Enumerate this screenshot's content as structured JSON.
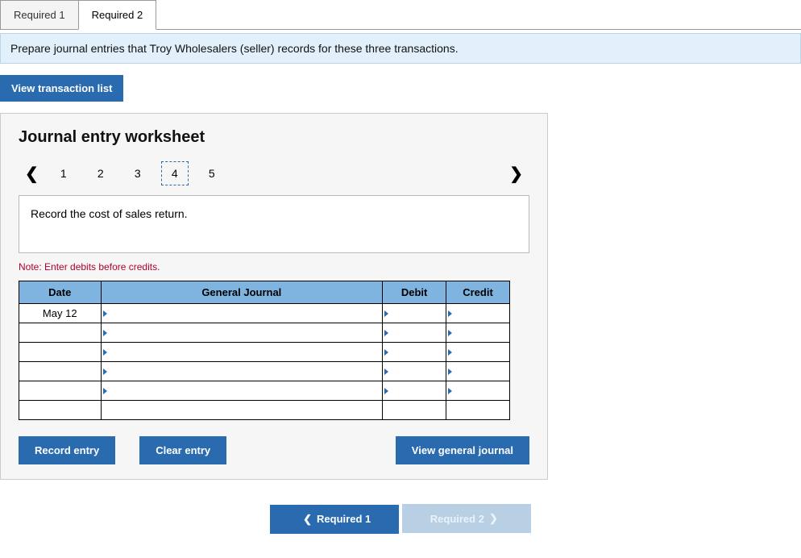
{
  "tabs": {
    "items": [
      {
        "label": "Required 1",
        "active": false
      },
      {
        "label": "Required 2",
        "active": true
      }
    ]
  },
  "instruction": "Prepare journal entries that Troy Wholesalers (seller) records for these three transactions.",
  "view_transaction_label": "View transaction list",
  "worksheet": {
    "title": "Journal entry worksheet",
    "pages": [
      "1",
      "2",
      "3",
      "4",
      "5"
    ],
    "active_page": "4",
    "prompt": "Record the cost of sales return.",
    "note": "Note: Enter debits before credits.",
    "columns": {
      "date": "Date",
      "journal": "General Journal",
      "debit": "Debit",
      "credit": "Credit"
    },
    "rows": [
      {
        "date": "May 12",
        "journal": "",
        "debit": "",
        "credit": ""
      },
      {
        "date": "",
        "journal": "",
        "debit": "",
        "credit": ""
      },
      {
        "date": "",
        "journal": "",
        "debit": "",
        "credit": ""
      },
      {
        "date": "",
        "journal": "",
        "debit": "",
        "credit": ""
      },
      {
        "date": "",
        "journal": "",
        "debit": "",
        "credit": ""
      },
      {
        "date": "",
        "journal": "",
        "debit": "",
        "credit": ""
      }
    ],
    "buttons": {
      "record": "Record entry",
      "clear": "Clear entry",
      "view_journal": "View general journal"
    }
  },
  "nav": {
    "prev": "Required 1",
    "next": "Required 2"
  },
  "colors": {
    "primary": "#2a6bb0",
    "header_bg": "#7fb3e0",
    "info_bg": "#e1f0fa",
    "note": "#b1002e",
    "disabled": "#b8cfe4"
  }
}
